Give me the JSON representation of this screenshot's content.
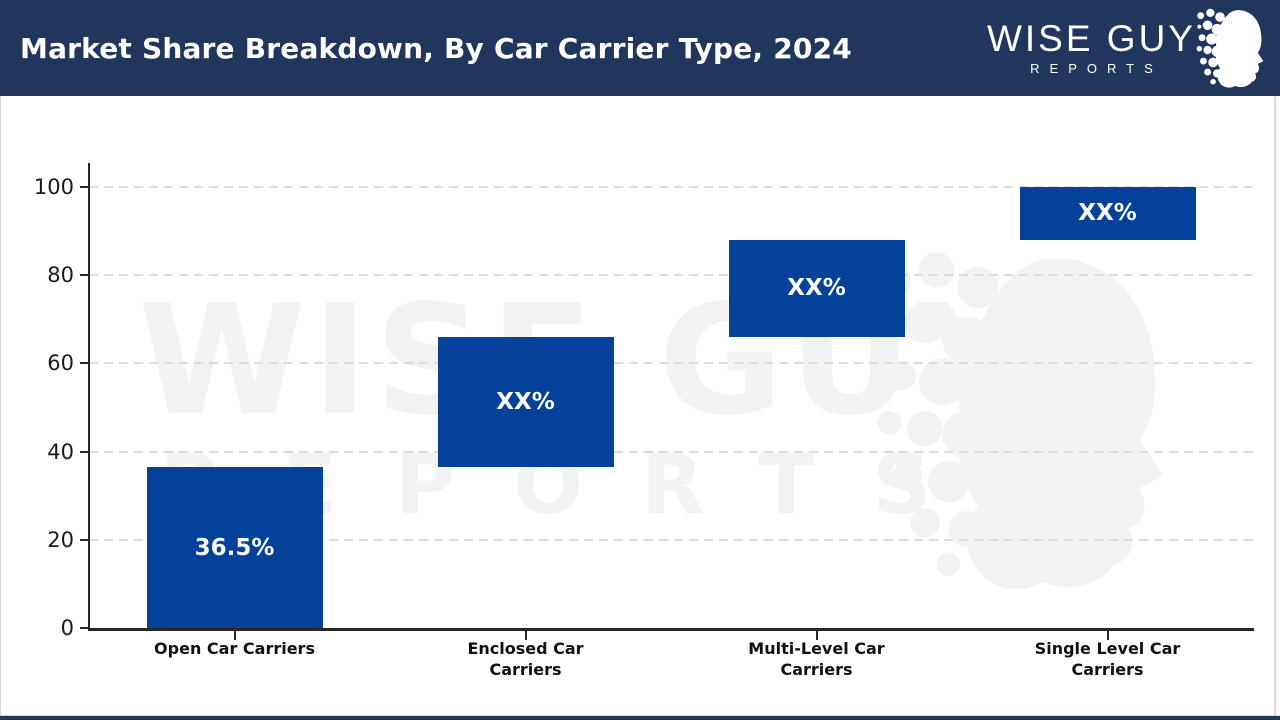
{
  "header": {
    "title": "Market Share Breakdown, By Car Carrier Type, 2024",
    "logo": {
      "line1": "WISE GUY",
      "line2": "REPORTS"
    }
  },
  "watermark": {
    "line1": "WISE GUY",
    "line2": "REPORTS"
  },
  "colors": {
    "header_bg": "#21365c",
    "footer_bg": "#21365c",
    "bar": "#04419a",
    "bar_label": "#ffffff",
    "grid": "#dcdcdc",
    "axis": "#262626",
    "watermark": "#f1f2f4"
  },
  "chart_data": {
    "type": "bar",
    "subtype": "floating-waterfall",
    "title": "Market Share Breakdown, By Car Carrier Type, 2024",
    "categories": [
      "Open Car Carriers",
      "Enclosed Car Carriers",
      "Multi-Level Car Carriers",
      "Single Level Car Carriers"
    ],
    "segments": [
      [
        0,
        36.5
      ],
      [
        36.5,
        66
      ],
      [
        66,
        88
      ],
      [
        88,
        100
      ]
    ],
    "bar_labels": [
      "36.5%",
      "XX%",
      "XX%",
      "XX%"
    ],
    "yticks": [
      0,
      20,
      40,
      60,
      80,
      100
    ],
    "ylim": [
      0,
      100
    ],
    "xlabel": "",
    "ylabel": "",
    "grid": "horizontal-dashed",
    "legend": "none"
  }
}
